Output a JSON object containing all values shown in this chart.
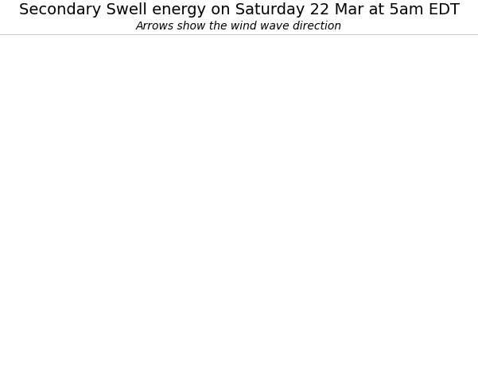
{
  "title": "Secondary Swell energy on Saturday 22 Mar at 5am EDT",
  "subtitle": "Arrows show the wind wave direction",
  "title_fontsize": 14,
  "subtitle_fontsize": 10,
  "background_color": "#ffffff",
  "map_background": "#000000",
  "land_color": "#aaaaaa",
  "swell_color_high": "#0000ff",
  "swell_color_low": "#00ccff",
  "figsize": [
    6.01,
    4.87
  ],
  "dpi": 100
}
